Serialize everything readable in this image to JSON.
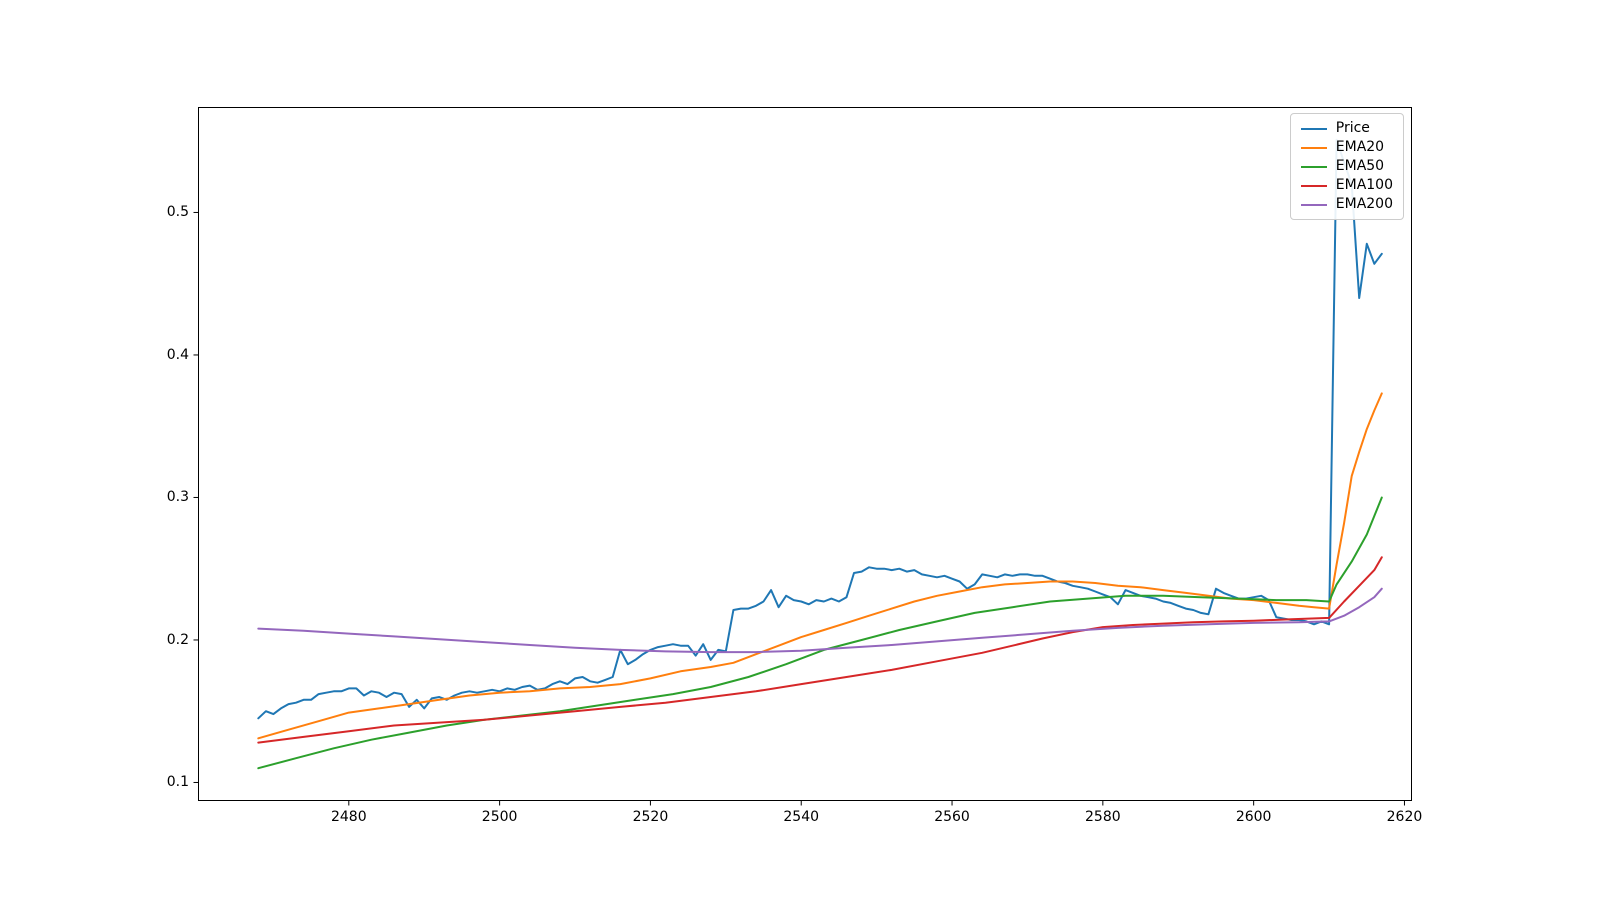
{
  "figure": {
    "background": "#ffffff",
    "legend": {
      "entries": [
        {
          "label": "Price",
          "color": "#1f77b4"
        },
        {
          "label": "EMA20",
          "color": "#ff7f0e"
        },
        {
          "label": "EMA50",
          "color": "#2ca02c"
        },
        {
          "label": "EMA100",
          "color": "#d62728"
        },
        {
          "label": "EMA200",
          "color": "#9467bd"
        }
      ]
    }
  },
  "chart_data": {
    "type": "line",
    "title": "",
    "xlabel": "",
    "ylabel": "",
    "grid": false,
    "legend_position": "upper right",
    "xlim": [
      2460,
      2621
    ],
    "ylim": [
      0.087,
      0.574
    ],
    "xticks": [
      2480,
      2500,
      2520,
      2540,
      2560,
      2580,
      2600,
      2620
    ],
    "xtick_labels": [
      "2480",
      "2500",
      "2520",
      "2540",
      "2560",
      "2580",
      "2600",
      "2620"
    ],
    "yticks": [
      0.1,
      0.2,
      0.3,
      0.4,
      0.5
    ],
    "ytick_labels": [
      "0.1",
      "0.2",
      "0.3",
      "0.4",
      "0.5"
    ],
    "axis_color": "#000000",
    "series": [
      {
        "name": "Price",
        "color": "#1f77b4",
        "points": [
          [
            2468,
            0.145
          ],
          [
            2469,
            0.15
          ],
          [
            2470,
            0.148
          ],
          [
            2471,
            0.152
          ],
          [
            2472,
            0.155
          ],
          [
            2473,
            0.156
          ],
          [
            2474,
            0.158
          ],
          [
            2475,
            0.158
          ],
          [
            2476,
            0.162
          ],
          [
            2477,
            0.163
          ],
          [
            2478,
            0.164
          ],
          [
            2479,
            0.164
          ],
          [
            2480,
            0.166
          ],
          [
            2481,
            0.166
          ],
          [
            2482,
            0.161
          ],
          [
            2483,
            0.164
          ],
          [
            2484,
            0.163
          ],
          [
            2485,
            0.16
          ],
          [
            2486,
            0.163
          ],
          [
            2487,
            0.162
          ],
          [
            2488,
            0.153
          ],
          [
            2489,
            0.158
          ],
          [
            2490,
            0.152
          ],
          [
            2491,
            0.159
          ],
          [
            2492,
            0.16
          ],
          [
            2493,
            0.158
          ],
          [
            2494,
            0.161
          ],
          [
            2495,
            0.163
          ],
          [
            2496,
            0.164
          ],
          [
            2497,
            0.163
          ],
          [
            2498,
            0.164
          ],
          [
            2499,
            0.165
          ],
          [
            2500,
            0.164
          ],
          [
            2501,
            0.166
          ],
          [
            2502,
            0.165
          ],
          [
            2503,
            0.167
          ],
          [
            2504,
            0.168
          ],
          [
            2505,
            0.165
          ],
          [
            2506,
            0.166
          ],
          [
            2507,
            0.169
          ],
          [
            2508,
            0.171
          ],
          [
            2509,
            0.169
          ],
          [
            2510,
            0.173
          ],
          [
            2511,
            0.174
          ],
          [
            2512,
            0.171
          ],
          [
            2513,
            0.17
          ],
          [
            2514,
            0.172
          ],
          [
            2515,
            0.174
          ],
          [
            2516,
            0.193
          ],
          [
            2517,
            0.183
          ],
          [
            2518,
            0.186
          ],
          [
            2519,
            0.19
          ],
          [
            2520,
            0.193
          ],
          [
            2521,
            0.195
          ],
          [
            2522,
            0.196
          ],
          [
            2523,
            0.197
          ],
          [
            2524,
            0.196
          ],
          [
            2525,
            0.196
          ],
          [
            2526,
            0.189
          ],
          [
            2527,
            0.197
          ],
          [
            2528,
            0.186
          ],
          [
            2529,
            0.193
          ],
          [
            2530,
            0.192
          ],
          [
            2531,
            0.221
          ],
          [
            2532,
            0.222
          ],
          [
            2533,
            0.222
          ],
          [
            2534,
            0.224
          ],
          [
            2535,
            0.227
          ],
          [
            2536,
            0.235
          ],
          [
            2537,
            0.223
          ],
          [
            2538,
            0.231
          ],
          [
            2539,
            0.228
          ],
          [
            2540,
            0.227
          ],
          [
            2541,
            0.225
          ],
          [
            2542,
            0.228
          ],
          [
            2543,
            0.227
          ],
          [
            2544,
            0.229
          ],
          [
            2545,
            0.227
          ],
          [
            2546,
            0.23
          ],
          [
            2547,
            0.247
          ],
          [
            2548,
            0.248
          ],
          [
            2549,
            0.251
          ],
          [
            2550,
            0.25
          ],
          [
            2551,
            0.25
          ],
          [
            2552,
            0.249
          ],
          [
            2553,
            0.25
          ],
          [
            2554,
            0.248
          ],
          [
            2555,
            0.249
          ],
          [
            2556,
            0.246
          ],
          [
            2557,
            0.245
          ],
          [
            2558,
            0.244
          ],
          [
            2559,
            0.245
          ],
          [
            2560,
            0.243
          ],
          [
            2561,
            0.241
          ],
          [
            2562,
            0.236
          ],
          [
            2563,
            0.239
          ],
          [
            2564,
            0.246
          ],
          [
            2565,
            0.245
          ],
          [
            2566,
            0.244
          ],
          [
            2567,
            0.246
          ],
          [
            2568,
            0.245
          ],
          [
            2569,
            0.246
          ],
          [
            2570,
            0.246
          ],
          [
            2571,
            0.245
          ],
          [
            2572,
            0.245
          ],
          [
            2573,
            0.243
          ],
          [
            2574,
            0.241
          ],
          [
            2575,
            0.24
          ],
          [
            2576,
            0.238
          ],
          [
            2577,
            0.237
          ],
          [
            2578,
            0.236
          ],
          [
            2579,
            0.234
          ],
          [
            2580,
            0.232
          ],
          [
            2581,
            0.23
          ],
          [
            2582,
            0.225
          ],
          [
            2583,
            0.235
          ],
          [
            2584,
            0.233
          ],
          [
            2585,
            0.231
          ],
          [
            2586,
            0.23
          ],
          [
            2587,
            0.229
          ],
          [
            2588,
            0.227
          ],
          [
            2589,
            0.226
          ],
          [
            2590,
            0.224
          ],
          [
            2591,
            0.222
          ],
          [
            2592,
            0.221
          ],
          [
            2593,
            0.219
          ],
          [
            2594,
            0.218
          ],
          [
            2595,
            0.236
          ],
          [
            2596,
            0.233
          ],
          [
            2597,
            0.231
          ],
          [
            2598,
            0.229
          ],
          [
            2599,
            0.229
          ],
          [
            2600,
            0.23
          ],
          [
            2601,
            0.231
          ],
          [
            2602,
            0.228
          ],
          [
            2603,
            0.216
          ],
          [
            2604,
            0.215
          ],
          [
            2605,
            0.214
          ],
          [
            2606,
            0.214
          ],
          [
            2607,
            0.213
          ],
          [
            2608,
            0.211
          ],
          [
            2609,
            0.213
          ],
          [
            2610,
            0.211
          ],
          [
            2611,
            0.551
          ],
          [
            2612,
            0.535
          ],
          [
            2613,
            0.52
          ],
          [
            2614,
            0.44
          ],
          [
            2615,
            0.478
          ],
          [
            2616,
            0.464
          ],
          [
            2617,
            0.471
          ]
        ]
      },
      {
        "name": "EMA20",
        "color": "#ff7f0e",
        "points": [
          [
            2468,
            0.131
          ],
          [
            2472,
            0.137
          ],
          [
            2476,
            0.143
          ],
          [
            2480,
            0.149
          ],
          [
            2484,
            0.152
          ],
          [
            2488,
            0.155
          ],
          [
            2492,
            0.158
          ],
          [
            2496,
            0.161
          ],
          [
            2500,
            0.163
          ],
          [
            2504,
            0.164
          ],
          [
            2508,
            0.166
          ],
          [
            2512,
            0.167
          ],
          [
            2516,
            0.169
          ],
          [
            2520,
            0.173
          ],
          [
            2524,
            0.178
          ],
          [
            2528,
            0.181
          ],
          [
            2531,
            0.184
          ],
          [
            2534,
            0.19
          ],
          [
            2537,
            0.196
          ],
          [
            2540,
            0.202
          ],
          [
            2543,
            0.207
          ],
          [
            2546,
            0.212
          ],
          [
            2549,
            0.217
          ],
          [
            2552,
            0.222
          ],
          [
            2555,
            0.227
          ],
          [
            2558,
            0.231
          ],
          [
            2561,
            0.234
          ],
          [
            2564,
            0.237
          ],
          [
            2567,
            0.239
          ],
          [
            2570,
            0.24
          ],
          [
            2573,
            0.241
          ],
          [
            2576,
            0.241
          ],
          [
            2579,
            0.24
          ],
          [
            2582,
            0.238
          ],
          [
            2585,
            0.237
          ],
          [
            2588,
            0.235
          ],
          [
            2591,
            0.233
          ],
          [
            2594,
            0.231
          ],
          [
            2597,
            0.229
          ],
          [
            2600,
            0.228
          ],
          [
            2603,
            0.226
          ],
          [
            2606,
            0.224
          ],
          [
            2608,
            0.223
          ],
          [
            2610,
            0.222
          ],
          [
            2611,
            0.253
          ],
          [
            2612,
            0.282
          ],
          [
            2613,
            0.315
          ],
          [
            2614,
            0.332
          ],
          [
            2615,
            0.348
          ],
          [
            2616,
            0.361
          ],
          [
            2617,
            0.373
          ]
        ]
      },
      {
        "name": "EMA50",
        "color": "#2ca02c",
        "points": [
          [
            2468,
            0.11
          ],
          [
            2473,
            0.117
          ],
          [
            2478,
            0.124
          ],
          [
            2483,
            0.13
          ],
          [
            2488,
            0.135
          ],
          [
            2493,
            0.14
          ],
          [
            2498,
            0.144
          ],
          [
            2503,
            0.147
          ],
          [
            2508,
            0.15
          ],
          [
            2513,
            0.154
          ],
          [
            2518,
            0.158
          ],
          [
            2523,
            0.162
          ],
          [
            2528,
            0.167
          ],
          [
            2533,
            0.174
          ],
          [
            2538,
            0.183
          ],
          [
            2543,
            0.193
          ],
          [
            2548,
            0.2
          ],
          [
            2553,
            0.207
          ],
          [
            2558,
            0.213
          ],
          [
            2563,
            0.219
          ],
          [
            2568,
            0.223
          ],
          [
            2573,
            0.227
          ],
          [
            2578,
            0.229
          ],
          [
            2583,
            0.231
          ],
          [
            2588,
            0.231
          ],
          [
            2593,
            0.23
          ],
          [
            2598,
            0.229
          ],
          [
            2603,
            0.228
          ],
          [
            2607,
            0.228
          ],
          [
            2610,
            0.227
          ],
          [
            2611,
            0.239
          ],
          [
            2613,
            0.255
          ],
          [
            2615,
            0.274
          ],
          [
            2616,
            0.287
          ],
          [
            2617,
            0.3
          ]
        ]
      },
      {
        "name": "EMA100",
        "color": "#d62728",
        "points": [
          [
            2468,
            0.128
          ],
          [
            2474,
            0.132
          ],
          [
            2480,
            0.136
          ],
          [
            2486,
            0.14
          ],
          [
            2492,
            0.142
          ],
          [
            2498,
            0.144
          ],
          [
            2504,
            0.147
          ],
          [
            2510,
            0.15
          ],
          [
            2516,
            0.153
          ],
          [
            2522,
            0.156
          ],
          [
            2528,
            0.16
          ],
          [
            2534,
            0.164
          ],
          [
            2540,
            0.169
          ],
          [
            2546,
            0.174
          ],
          [
            2552,
            0.179
          ],
          [
            2558,
            0.185
          ],
          [
            2564,
            0.191
          ],
          [
            2568,
            0.196
          ],
          [
            2572,
            0.201
          ],
          [
            2576,
            0.2055
          ],
          [
            2580,
            0.209
          ],
          [
            2584,
            0.2105
          ],
          [
            2588,
            0.2115
          ],
          [
            2592,
            0.2125
          ],
          [
            2596,
            0.213
          ],
          [
            2600,
            0.2135
          ],
          [
            2605,
            0.2145
          ],
          [
            2610,
            0.2155
          ],
          [
            2612,
            0.227
          ],
          [
            2614,
            0.238
          ],
          [
            2616,
            0.249
          ],
          [
            2617,
            0.258
          ]
        ]
      },
      {
        "name": "EMA200",
        "color": "#9467bd",
        "points": [
          [
            2468,
            0.208
          ],
          [
            2474,
            0.2065
          ],
          [
            2480,
            0.2045
          ],
          [
            2486,
            0.2025
          ],
          [
            2492,
            0.2005
          ],
          [
            2498,
            0.1985
          ],
          [
            2504,
            0.1965
          ],
          [
            2510,
            0.1945
          ],
          [
            2516,
            0.193
          ],
          [
            2522,
            0.192
          ],
          [
            2528,
            0.1915
          ],
          [
            2534,
            0.1915
          ],
          [
            2540,
            0.1925
          ],
          [
            2546,
            0.1945
          ],
          [
            2552,
            0.1965
          ],
          [
            2558,
            0.199
          ],
          [
            2564,
            0.2015
          ],
          [
            2570,
            0.204
          ],
          [
            2576,
            0.2065
          ],
          [
            2582,
            0.2085
          ],
          [
            2588,
            0.21
          ],
          [
            2594,
            0.211
          ],
          [
            2600,
            0.212
          ],
          [
            2606,
            0.2125
          ],
          [
            2610,
            0.213
          ],
          [
            2612,
            0.217
          ],
          [
            2614,
            0.223
          ],
          [
            2616,
            0.23
          ],
          [
            2617,
            0.236
          ]
        ]
      }
    ]
  }
}
